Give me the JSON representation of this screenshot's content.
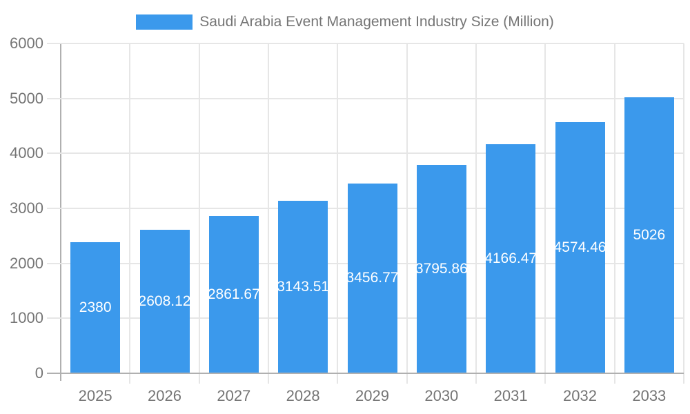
{
  "chart_data": {
    "type": "bar",
    "title": "Saudi Arabia Event Management Industry Size (Million)",
    "legend_position": "top",
    "categories": [
      "2025",
      "2026",
      "2027",
      "2028",
      "2029",
      "2030",
      "2031",
      "2032",
      "2033"
    ],
    "series": [
      {
        "name": "Saudi Arabia Event Management Industry Size (Million)",
        "values": [
          2380,
          2608.12,
          2861.67,
          3143.51,
          3456.77,
          3795.86,
          4166.47,
          4574.46,
          5026
        ]
      }
    ],
    "bar_labels": [
      "2380",
      "2608.12",
      "2861.67",
      "3143.51",
      "3456.77",
      "3795.86",
      "4166.47",
      "4574.46",
      "5026"
    ],
    "xlabel": "",
    "ylabel": "",
    "ylim": [
      0,
      6000
    ],
    "y_ticks": [
      0,
      1000,
      2000,
      3000,
      4000,
      5000,
      6000
    ],
    "grid": true,
    "colors": {
      "bar": "#3B99EC",
      "bar_label_text": "#FFFFFF",
      "axis_text": "#757575",
      "grid_line": "#E6E6E6",
      "axis_line": "#B0B0B0",
      "background": "#FFFFFF"
    }
  }
}
